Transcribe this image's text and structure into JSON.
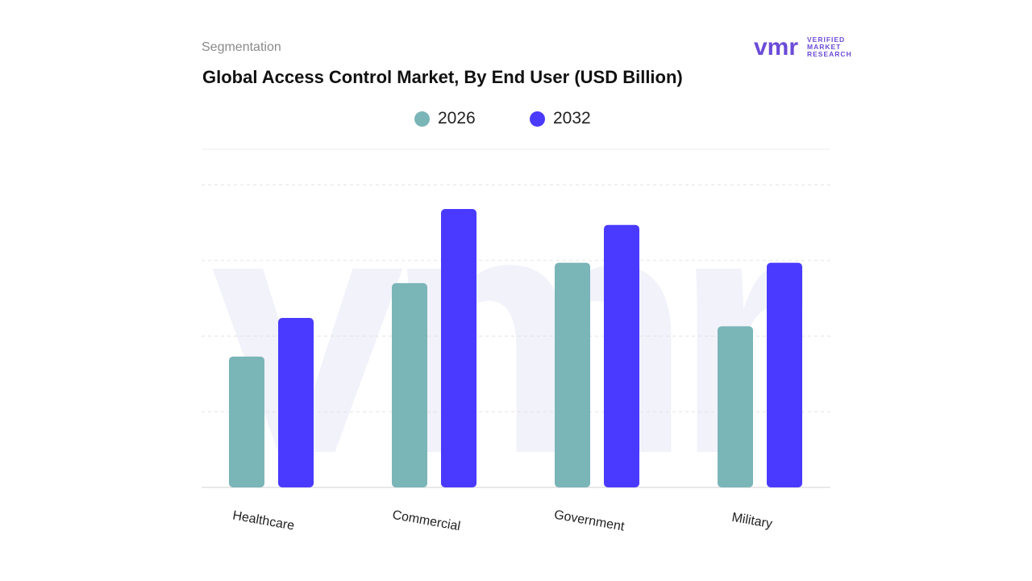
{
  "header": {
    "section": "Segmentation",
    "logo_text": "VERIFIED MARKET RESEARCH"
  },
  "colors": {
    "s2026": "#7ab5b8",
    "s2032": "#4a3aff",
    "grid": "#e3e3e3",
    "watermark": "#f1f2fa"
  },
  "chart_data": {
    "type": "bar",
    "title": "Global Access Control Market, By End User (USD Billion)",
    "categories": [
      "Healthcare",
      "Commercial",
      "Government",
      "Military"
    ],
    "series": [
      {
        "name": "2026",
        "values": [
          1.73,
          2.7,
          2.97,
          2.13
        ]
      },
      {
        "name": "2032",
        "values": [
          2.24,
          3.68,
          3.47,
          2.97
        ]
      }
    ],
    "xlabel": "",
    "ylabel": "",
    "ylim": [
      0,
      4
    ],
    "grid": true,
    "legend": "top-center"
  }
}
